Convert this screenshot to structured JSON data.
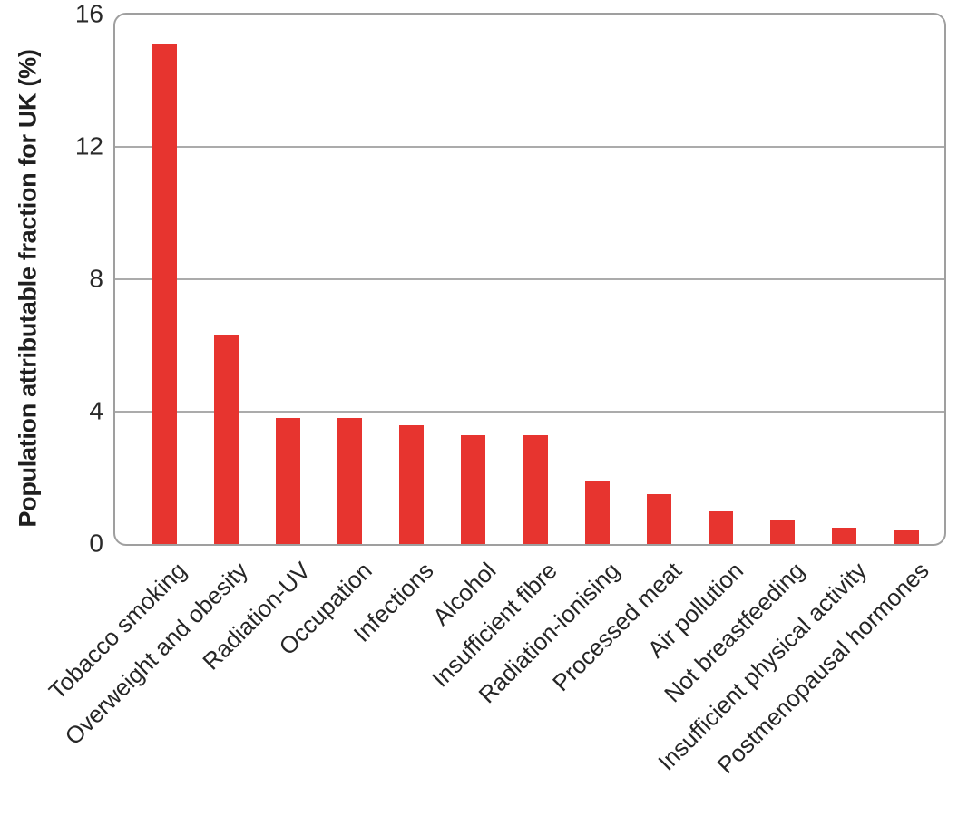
{
  "chart_data": {
    "type": "bar",
    "title": "",
    "xlabel": "",
    "ylabel": "Population attributable fraction for UK (%)",
    "ylim": [
      0,
      16
    ],
    "yticks": [
      0,
      4,
      8,
      12,
      16
    ],
    "gridlines": [
      4,
      8,
      12
    ],
    "grid": true,
    "legend_position": "none",
    "bar_color": "#e7342f",
    "categories": [
      "Tobacco smoking",
      "Overweight and obesity",
      "Radiation-UV",
      "Occupation",
      "Infections",
      "Alcohol",
      "Insufficient fibre",
      "Radiation-ionising",
      "Processed meat",
      "Air pollution",
      "Not breastfeeding",
      "Insufficient physical activity",
      "Postmenopausal hormones"
    ],
    "values": [
      15.1,
      6.3,
      3.8,
      3.8,
      3.6,
      3.3,
      3.3,
      1.9,
      1.5,
      1.0,
      0.7,
      0.5,
      0.4
    ]
  },
  "colors": {
    "bar": "#e7342f",
    "grid": "#ababab",
    "plot_border": "#9f9f9f",
    "text": "#262626",
    "background": "#ffffff"
  }
}
